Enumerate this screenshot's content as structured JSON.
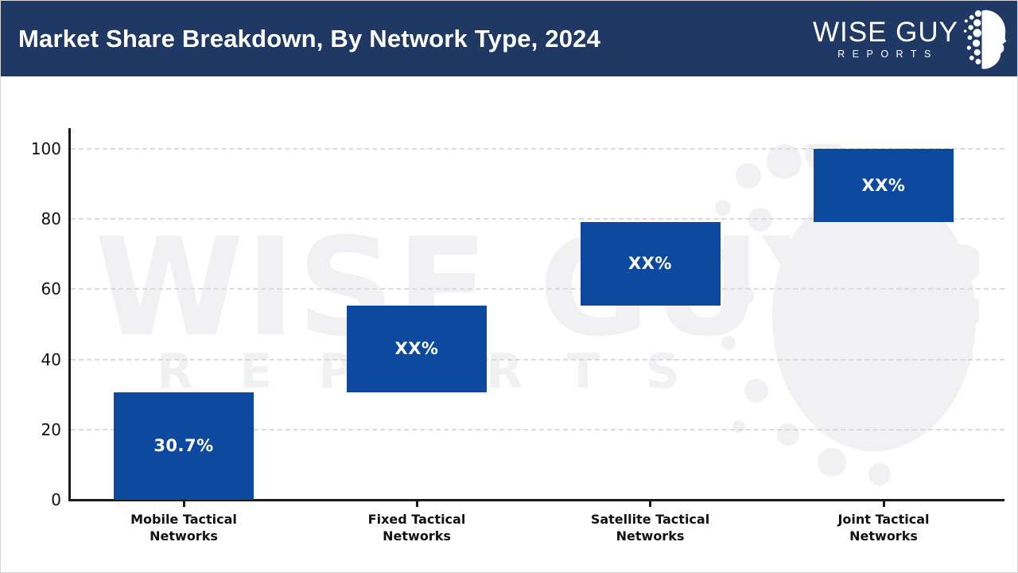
{
  "header": {
    "title": "Market Share Breakdown, By Network Type, 2024",
    "logo": {
      "line1": "WISE GUY",
      "line2": "REPORTS"
    }
  },
  "watermark": {
    "line1": "WISE GUY",
    "line2": "REPORTS"
  },
  "chart_data": {
    "type": "bar",
    "variant": "waterfall (stacked market-share steps)",
    "title": "Market Share Breakdown, By Network Type, 2024",
    "categories": [
      "Mobile Tactical Networks",
      "Fixed Tactical Networks",
      "Satellite Tactical Networks",
      "Joint Tactical Networks"
    ],
    "category_lines": [
      [
        "Mobile Tactical",
        "Networks"
      ],
      [
        "Fixed Tactical",
        "Networks"
      ],
      [
        "Satellite Tactical",
        "Networks"
      ],
      [
        "Joint Tactical",
        "Networks"
      ]
    ],
    "segments": [
      {
        "category": "Mobile Tactical Networks",
        "start": 0,
        "end": 30.7,
        "value_label": "30.7%"
      },
      {
        "category": "Fixed Tactical Networks",
        "start": 30.7,
        "end": 55.3,
        "value_label": "XX%"
      },
      {
        "category": "Satellite Tactical Networks",
        "start": 55.3,
        "end": 79.2,
        "value_label": "XX%"
      },
      {
        "category": "Joint Tactical Networks",
        "start": 79.2,
        "end": 100,
        "value_label": "XX%"
      }
    ],
    "yticks": [
      0,
      20,
      40,
      60,
      80,
      100
    ],
    "ylim": [
      0,
      105.9
    ],
    "xlabel": "",
    "ylabel": "",
    "grid": "horizontal dashed",
    "legend": "none",
    "bar_color": "#0d4a9f",
    "bar_label_color": "#ffffff"
  },
  "colors": {
    "header_bg": "#1f3864",
    "bar": "#0d4a9f",
    "grid": "#dbdbdb",
    "axis": "#1a1a1a",
    "watermark": "#f1f1f3"
  }
}
